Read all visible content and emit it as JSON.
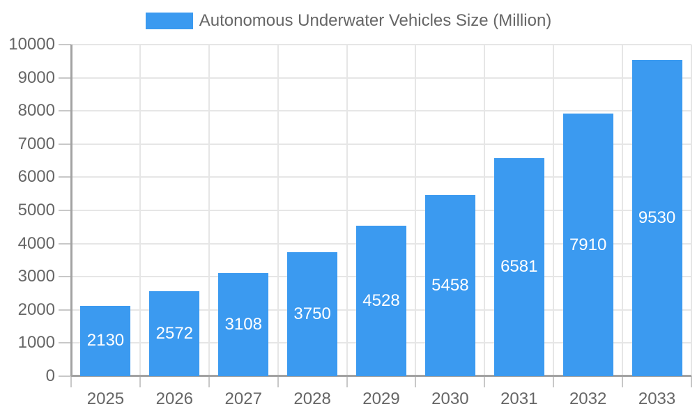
{
  "legend": {
    "label": "Autonomous Underwater Vehicles Size (Million)"
  },
  "colors": {
    "bar": "#3b9af0",
    "grid": "#e6e6e6",
    "axis": "#a2a2a2",
    "tick": "#c8c8c8",
    "label_text": "#666666",
    "value_text": "#ffffff",
    "background": "#ffffff"
  },
  "chart_data": {
    "type": "bar",
    "title": "Autonomous Underwater Vehicles Size (Million)",
    "categories": [
      "2025",
      "2026",
      "2027",
      "2028",
      "2029",
      "2030",
      "2031",
      "2032",
      "2033"
    ],
    "values": [
      2130,
      2572,
      3108,
      3750,
      4528,
      5458,
      6581,
      7910,
      9530
    ],
    "xlabel": "",
    "ylabel": "",
    "ylim": [
      0,
      10000
    ],
    "ytick_step": 1000,
    "grid": true,
    "legend_position": "top-center",
    "value_labels": "inside-center"
  }
}
